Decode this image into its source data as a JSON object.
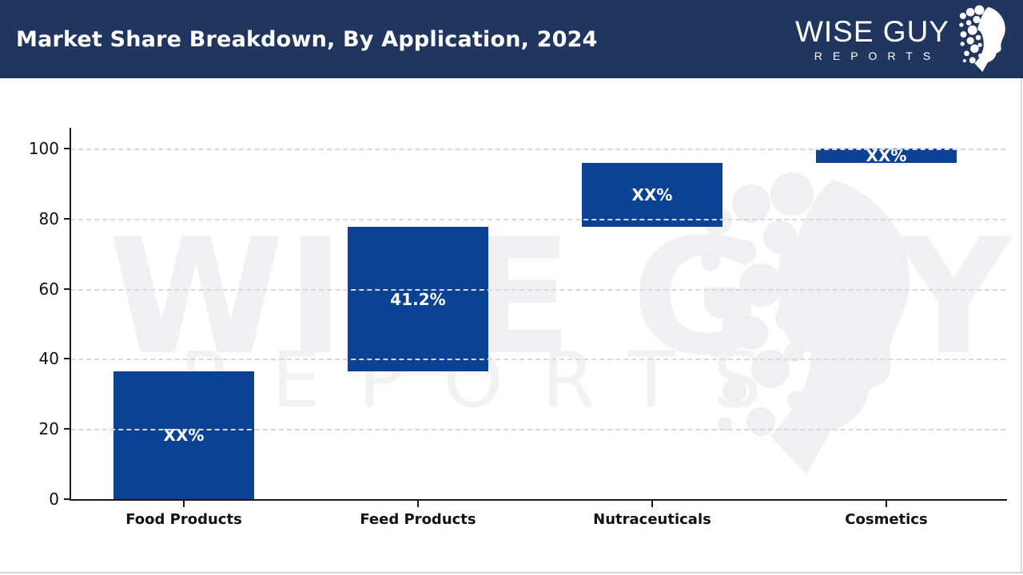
{
  "header": {
    "title": "Market Share Breakdown, By Application, 2024",
    "bg_color": "#21365f",
    "logo_line1": "WISE GUY",
    "logo_line2": "REPORTS"
  },
  "watermark": {
    "line1": "WISE GUY",
    "line2": "REPORTS"
  },
  "chart_data": {
    "type": "bar",
    "variant": "waterfall",
    "title": "Market Share Breakdown, By Application, 2024",
    "categories": [
      "Food Products",
      "Feed Products",
      "Nutraceuticals",
      "Cosmetics"
    ],
    "values": [
      36.4,
      41.2,
      18.4,
      4.0
    ],
    "cumulative": [
      36.4,
      77.6,
      96.0,
      100.0
    ],
    "value_labels": [
      "XX%",
      "41.2%",
      "XX%",
      "XX%"
    ],
    "xlabel": "",
    "ylabel": "",
    "ylim": [
      0,
      100
    ],
    "yticks": [
      0,
      20,
      40,
      60,
      80,
      100
    ],
    "grid": "horizontal-dashed",
    "legend": "none",
    "bar_color": "#0b4294",
    "bar_label_color": "#ffffff",
    "axis_color": "#1a1a1a",
    "gridline_color": "#d9d9d9"
  }
}
